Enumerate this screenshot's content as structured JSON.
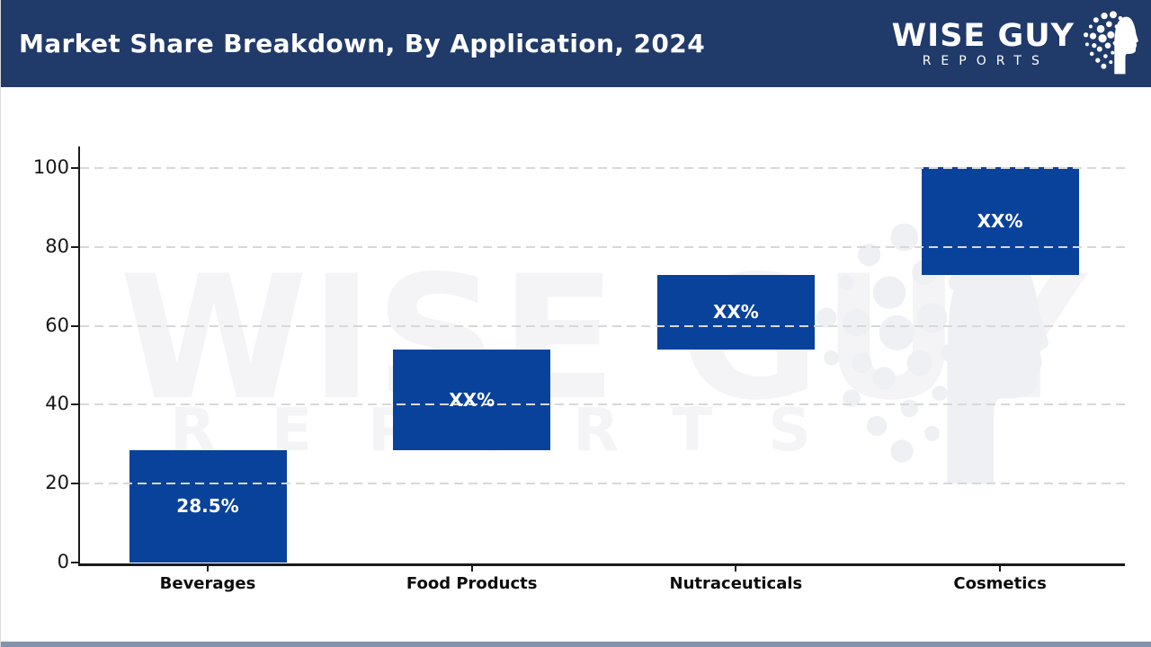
{
  "header": {
    "title": "Market Share Breakdown, By Application, 2024",
    "logo": {
      "line1": "WISE GUY",
      "line2": "REPORTS"
    }
  },
  "watermark": {
    "line1": "WISE GUY",
    "line2": "REPORTS"
  },
  "chart_data": {
    "type": "bar",
    "subtype": "waterfall-stacked-percentage",
    "title": "Market Share Breakdown, By Application, 2024",
    "categories": [
      "Beverages",
      "Food Products",
      "Nutraceuticals",
      "Cosmetics"
    ],
    "segments": [
      {
        "category": "Beverages",
        "label": "28.5%",
        "start": 0,
        "end": 28.5
      },
      {
        "category": "Food Products",
        "label": "XX%",
        "start": 28.5,
        "end": 54
      },
      {
        "category": "Nutraceuticals",
        "label": "XX%",
        "start": 54,
        "end": 73
      },
      {
        "category": "Cosmetics",
        "label": "XX%",
        "start": 73,
        "end": 100.3
      }
    ],
    "xlabel": "",
    "ylabel": "",
    "ylim": [
      0,
      105
    ],
    "yticks": [
      0,
      20,
      40,
      60,
      80,
      100
    ],
    "grid": "horizontal-dashed",
    "legend": "none",
    "colors": {
      "bar": "#09429b",
      "bar_label": "#ffffff",
      "axis": "#1a1a1a",
      "gridline": "#d8d8d8",
      "header_background": "#203a69",
      "watermark": "#f4f4f7"
    }
  }
}
